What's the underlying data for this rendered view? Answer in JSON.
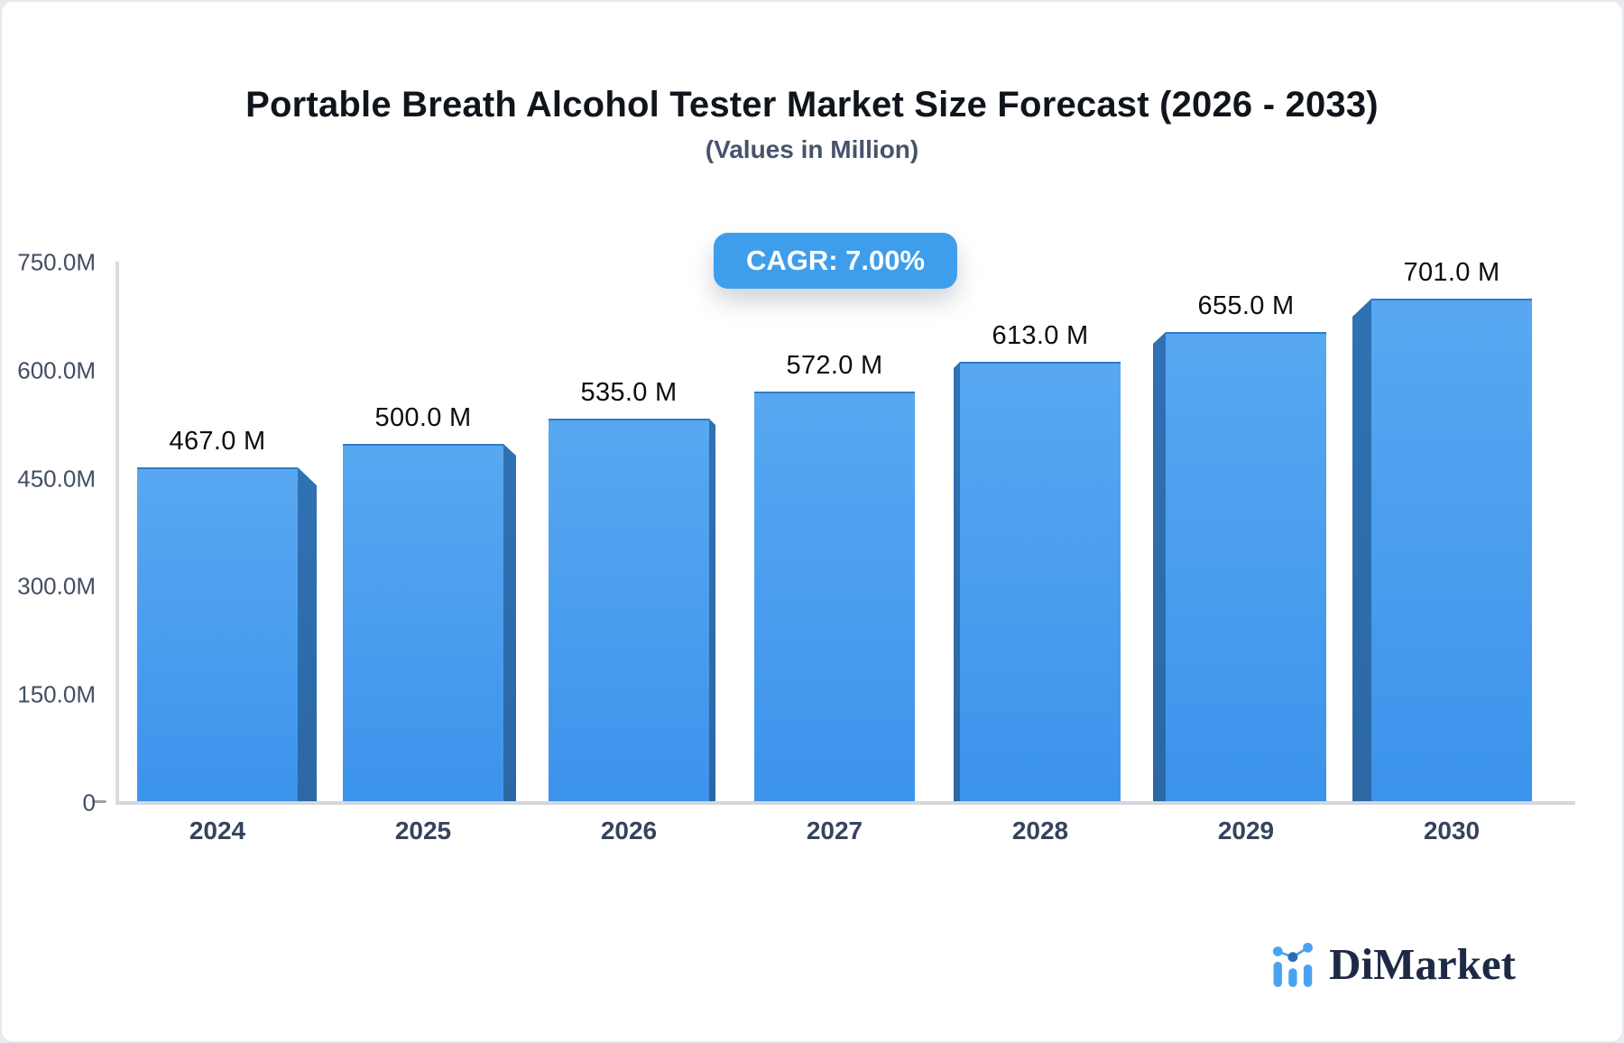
{
  "header": {
    "title": "Portable Breath Alcohol Tester Market Size Forecast (2026 - 2033)",
    "subtitle": "(Values in Million)",
    "cagr_badge": "CAGR: 7.00%"
  },
  "branding": {
    "logo_text": "DiMarket",
    "logo_icon": "mini-bar-line-chart-icon"
  },
  "colors": {
    "bar_face_top": "#58a8f1",
    "bar_face_bottom": "#3c93ec",
    "bar_side": "#2e6fae",
    "badge_bg": "#3f9eec",
    "axis_line": "#d7dade",
    "title_text": "#10151c",
    "subtitle_text": "#46536b",
    "tick_text": "#414d63",
    "logo_icon_blue": "#4aa3f0",
    "logo_icon_dark": "#2b6cb3"
  },
  "chart_data": {
    "type": "bar",
    "title": "Portable Breath Alcohol Tester Market Size Forecast (2026 - 2033)",
    "subtitle": "(Values in Million)",
    "unit": "Million",
    "cagr": "7.00%",
    "categories": [
      "2024",
      "2025",
      "2026",
      "2027",
      "2028",
      "2029",
      "2030"
    ],
    "values": [
      467,
      500,
      535,
      572,
      613,
      655,
      701
    ],
    "bar_labels": [
      "467.0 M",
      "500.0 M",
      "535.0 M",
      "572.0 M",
      "613.0 M",
      "655.0 M",
      "701.0 M"
    ],
    "y_ticks": [
      "750.0M",
      "600.0M",
      "450.0M",
      "300.0M",
      "150.0M",
      "0"
    ],
    "ylim": [
      0,
      750
    ],
    "grid": "off",
    "legend": "none",
    "style_note": "pseudo-3d bars, side extrusion faces toward chart center"
  }
}
